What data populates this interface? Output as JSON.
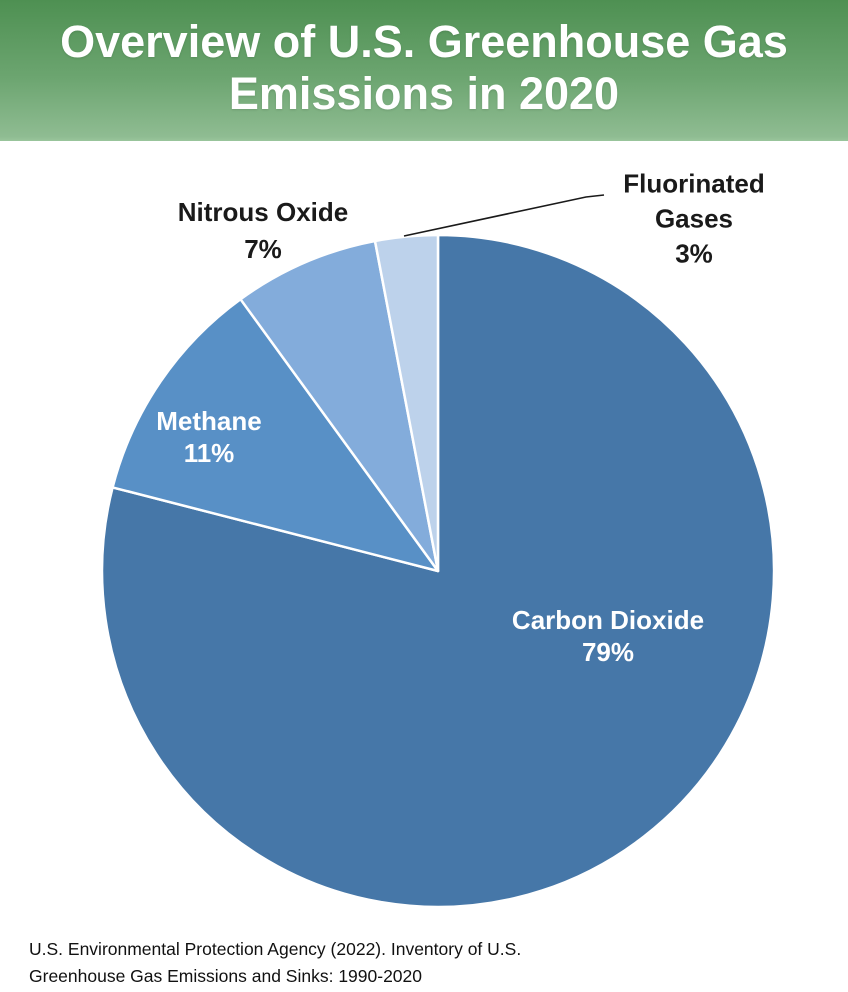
{
  "header": {
    "title_lines": [
      "Overview of U.S. Greenhouse Gas",
      "Emissions in 2020"
    ]
  },
  "chart_data": {
    "type": "pie",
    "title": "Overview of U.S. Greenhouse Gas Emissions in 2020",
    "units": "percent",
    "start_angle_deg": 0,
    "direction": "clockwise",
    "slices": [
      {
        "label": "Carbon Dioxide",
        "value": 79,
        "pct_label": "79%",
        "color": "#4677A8",
        "label_color": "#FFFFFF",
        "label_position": "inside"
      },
      {
        "label": "Methane",
        "value": 11,
        "pct_label": "11%",
        "color": "#5890C6",
        "label_color": "#FFFFFF",
        "label_position": "inside"
      },
      {
        "label": "Nitrous Oxide",
        "value": 7,
        "pct_label": "7%",
        "color": "#83ACDB",
        "label_color": "#1A1A1A",
        "label_position": "outside"
      },
      {
        "label": "Fluorinated Gases",
        "value": 3,
        "pct_label": "3%",
        "color": "#BDD2EB",
        "label_color": "#1A1A1A",
        "label_position": "outside-with-leader-line"
      }
    ]
  },
  "footer": {
    "lines": [
      "U.S. Environmental Protection Agency (2022). Inventory of U.S.",
      "Greenhouse Gas Emissions and Sinks: 1990-2020"
    ]
  },
  "colors": {
    "header_gradient_top": "#4E9052",
    "header_gradient_bottom": "#8FBC92",
    "title_text": "#FFFFFF",
    "background": "#FFFFFF",
    "slice_border": "#FFFFFF",
    "leader_line": "#1A1A1A"
  }
}
